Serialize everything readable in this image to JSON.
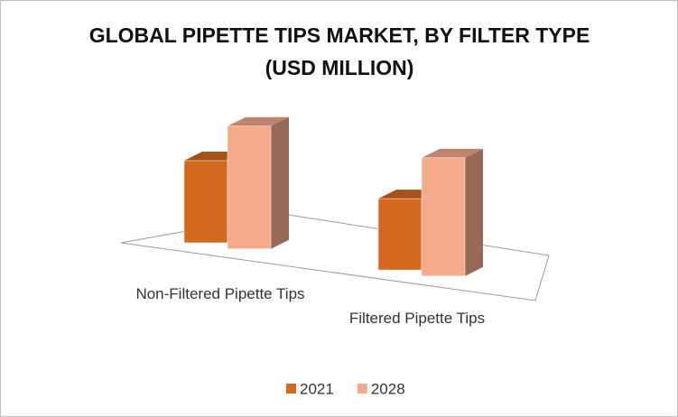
{
  "chart_data": {
    "type": "bar3d",
    "title": "GLOBAL PIPETTE TIPS MARKET, BY FILTER TYPE (USD MILLION)",
    "categories": [
      "Non-Filtered Pipette Tips",
      "Filtered Pipette Tips"
    ],
    "series": [
      {
        "name": "2021",
        "color": "#d2691e",
        "values": [
          91,
          79
        ]
      },
      {
        "name": "2028",
        "color": "#f4a98a",
        "values": [
          136,
          131
        ]
      }
    ],
    "legend": "bottom"
  }
}
